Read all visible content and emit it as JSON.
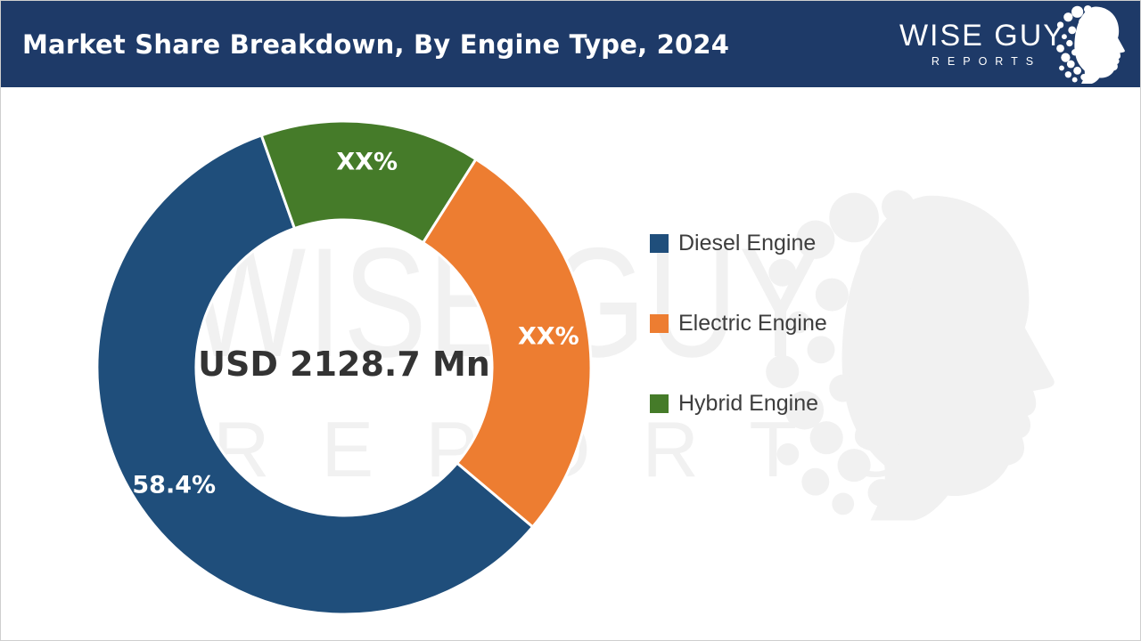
{
  "header": {
    "title": "Market Share Breakdown, By Engine Type, 2024",
    "logo": {
      "line1": "WISE GUY",
      "line2": "REPORTS"
    }
  },
  "watermark": {
    "line1": "WISE GUY",
    "line2": "REPORTS"
  },
  "chart_data": {
    "type": "donut",
    "title": "Market Share Breakdown, By Engine Type, 2024",
    "center_label": "USD 2128.7 Mn",
    "legend_position": "right",
    "start_angle_deg": 130.2,
    "draw_order": [
      0,
      2,
      1
    ],
    "segments": [
      {
        "label": "Diesel Engine",
        "display_value": "58.4%",
        "arc_percent": 58.4,
        "color": "#1F4E7B"
      },
      {
        "label": "Electric Engine",
        "display_value": "XX%",
        "arc_percent": 27.2,
        "color": "#ED7D31"
      },
      {
        "label": "Hybrid Engine",
        "display_value": "XX%",
        "arc_percent": 14.4,
        "color": "#457B29"
      }
    ]
  },
  "colors": {
    "header_bg": "#1E3A68",
    "center_text": "#333333",
    "legend_text": "#3D3D3D",
    "watermark": "#F1F1F1",
    "segment_divider": "#FFFFFF"
  }
}
